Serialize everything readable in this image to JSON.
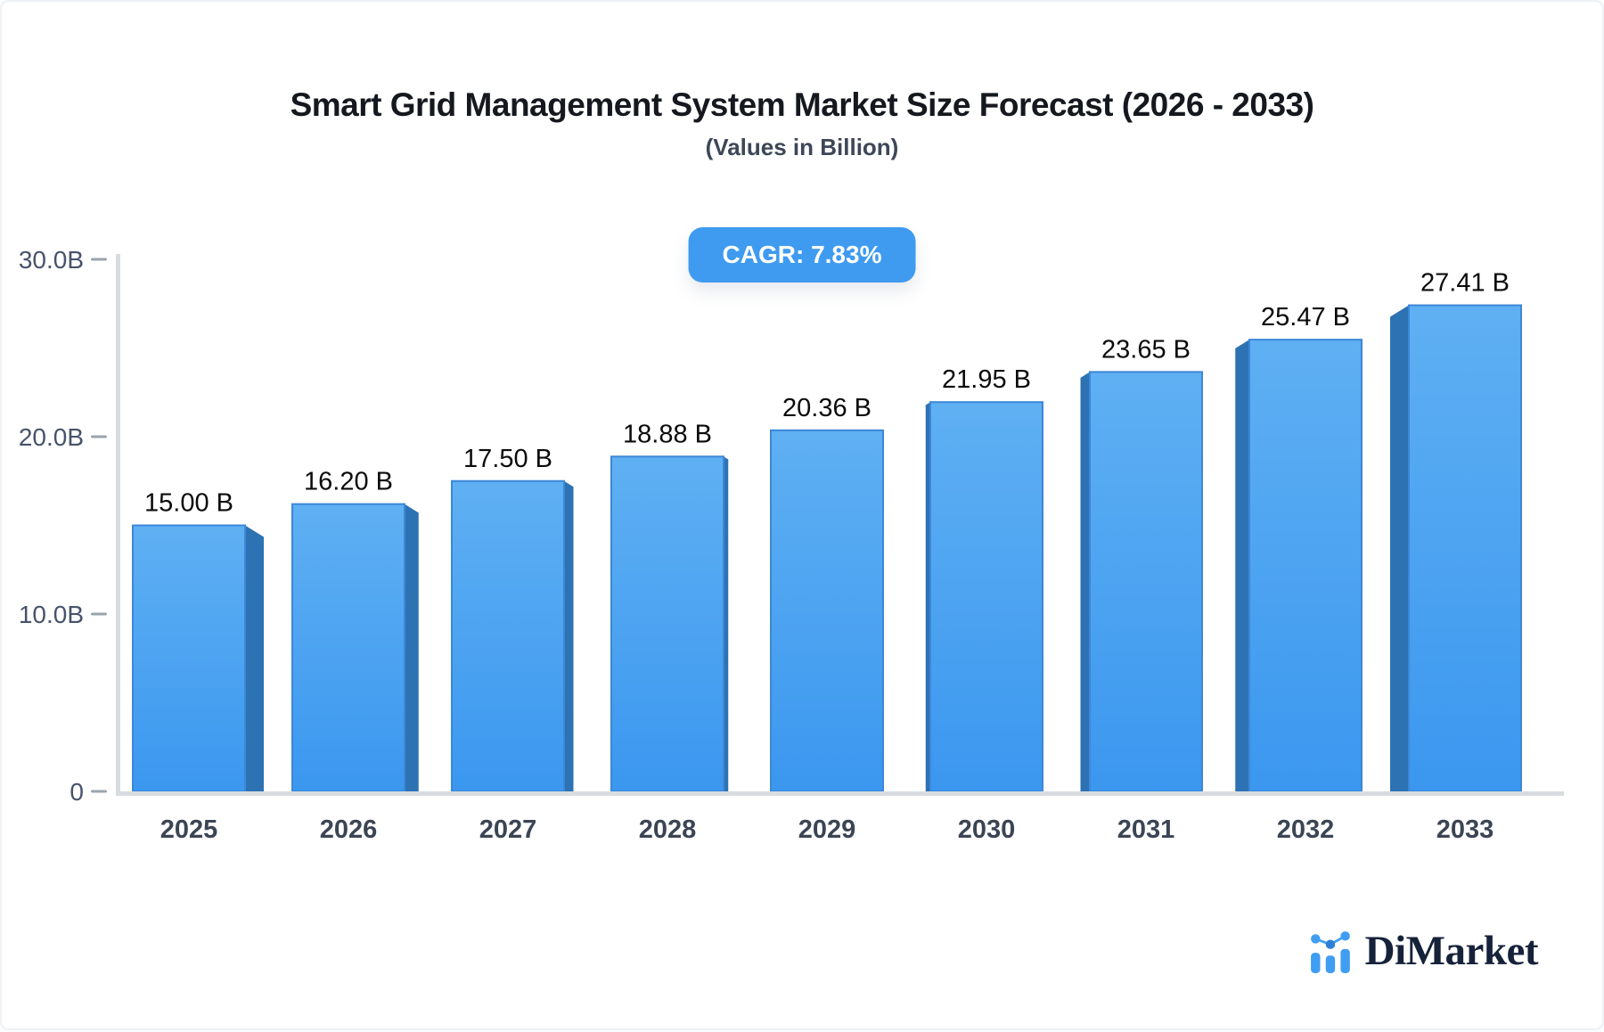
{
  "page": {
    "cagr_label": "CAGR: 7.83%"
  },
  "brand": {
    "name": "DiMarket",
    "icon": "bar-chart-logo-icon"
  },
  "colors": {
    "bar_face_top": "#5fb0f3",
    "bar_face_bottom": "#3b97ef",
    "bar_face_stroke": "#3d87d8",
    "bar_side": "#2d72b3",
    "axis_line": "#d8dce1",
    "tick_dash": "#9aa4ae",
    "tick_label": "#47536b",
    "year_label": "#3b4554",
    "value_label": "#0b0b0b",
    "badge_bg": "#3f9bf0",
    "badge_text": "#ffffff",
    "logo_blue": "#3f9ef2",
    "logo_dot_mid": "#2e7fd6",
    "logo_text": "#16223a"
  },
  "chart_data": {
    "type": "bar",
    "title": "Smart Grid Management System Market Size Forecast (2026 - 2033)",
    "subtitle": "(Values in Billion)",
    "categories": [
      "2025",
      "2026",
      "2027",
      "2028",
      "2029",
      "2030",
      "2031",
      "2032",
      "2033"
    ],
    "values": [
      15.0,
      16.2,
      17.5,
      18.88,
      20.36,
      21.95,
      23.65,
      25.47,
      27.41
    ],
    "value_labels": [
      "15.00 B",
      "16.20 B",
      "17.50 B",
      "18.88 B",
      "20.36 B",
      "21.95 B",
      "23.65 B",
      "25.47 B",
      "27.41 B"
    ],
    "ylim": [
      0,
      30
    ],
    "yticks": [
      {
        "value": 0,
        "label": "0"
      },
      {
        "value": 10,
        "label": "10.0B"
      },
      {
        "value": 20,
        "label": "20.0B"
      },
      {
        "value": 30,
        "label": "30.0B"
      }
    ],
    "grid": "off",
    "legend": "none",
    "bar_style": "3d-perspective-center-vanishing"
  }
}
